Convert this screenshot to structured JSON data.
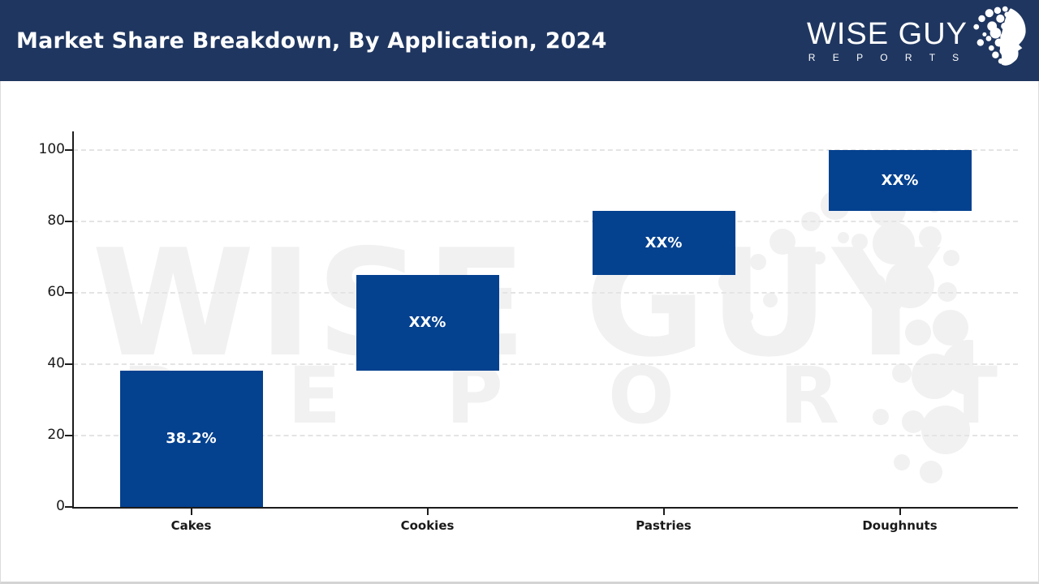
{
  "header": {
    "title": "Market Share Breakdown, By Application, 2024",
    "logo": {
      "wordmark": "WISE GUY",
      "subtext": "R E P O R T S"
    }
  },
  "watermark": {
    "line1": "WISE GUY",
    "line2": "R E P O R T S"
  },
  "chart_data": {
    "type": "bar",
    "subtype": "waterfall",
    "title": "Market Share Breakdown, By Application, 2024",
    "categories": [
      "Cakes",
      "Cookies",
      "Pastries",
      "Doughnuts"
    ],
    "series": [
      {
        "name": "Cakes",
        "start": 0,
        "end": 38.2,
        "label": "38.2%"
      },
      {
        "name": "Cookies",
        "start": 38.2,
        "end": 65,
        "label": "XX%"
      },
      {
        "name": "Pastries",
        "start": 65,
        "end": 83,
        "label": "XX%"
      },
      {
        "name": "Doughnuts",
        "start": 83,
        "end": 100,
        "label": "XX%"
      }
    ],
    "xlabel": "",
    "ylabel": "",
    "ylim": [
      0,
      100
    ],
    "yticks": [
      0,
      20,
      40,
      60,
      80,
      100
    ],
    "grid": "horizontal-dashed",
    "legend": "none",
    "bar_color": "#04418f",
    "bar_label_color": "#ffffff",
    "axis_color": "#1c1c1c",
    "tick_label_color": "#1a1a1a"
  },
  "colors": {
    "header_bg": "#1f3660",
    "page_bg": "#ffffff",
    "watermark": "#f1f1f2",
    "gridline": "#e4e4e4"
  }
}
